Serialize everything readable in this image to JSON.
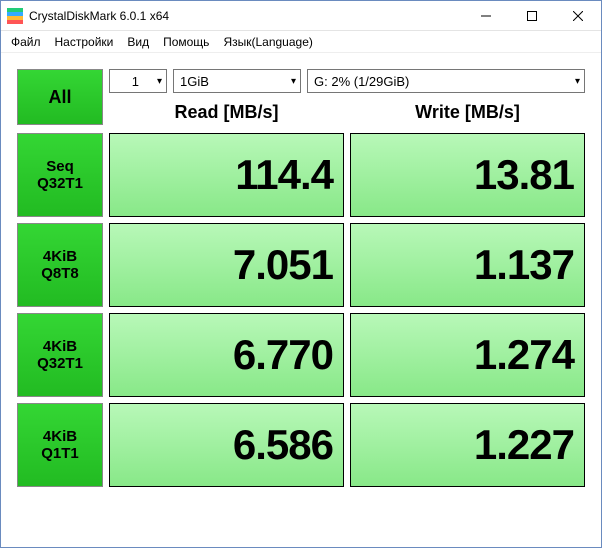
{
  "window": {
    "title": "CrystalDiskMark 6.0.1 x64"
  },
  "menu": {
    "file": "Файл",
    "settings": "Настройки",
    "view": "Вид",
    "help": "Помощь",
    "language": "Язык(Language)"
  },
  "controls": {
    "all_label": "All",
    "count_value": "1",
    "size_value": "1GiB",
    "drive_value": "G: 2% (1/29GiB)"
  },
  "headers": {
    "read": "Read [MB/s]",
    "write": "Write [MB/s]"
  },
  "tests": [
    {
      "line1": "Seq",
      "line2": "Q32T1",
      "read": "114.4",
      "write": "13.81"
    },
    {
      "line1": "4KiB",
      "line2": "Q8T8",
      "read": "7.051",
      "write": "1.137"
    },
    {
      "line1": "4KiB",
      "line2": "Q32T1",
      "read": "6.770",
      "write": "1.274"
    },
    {
      "line1": "4KiB",
      "line2": "Q1T1",
      "read": "6.586",
      "write": "1.227"
    }
  ],
  "colors": {
    "button_green_top": "#34d634",
    "button_green_bottom": "#22bb22",
    "value_bg_top": "#b8f8b8",
    "value_bg_bottom": "#88e888",
    "border": "#000000",
    "window_border": "#6a8bbf"
  }
}
